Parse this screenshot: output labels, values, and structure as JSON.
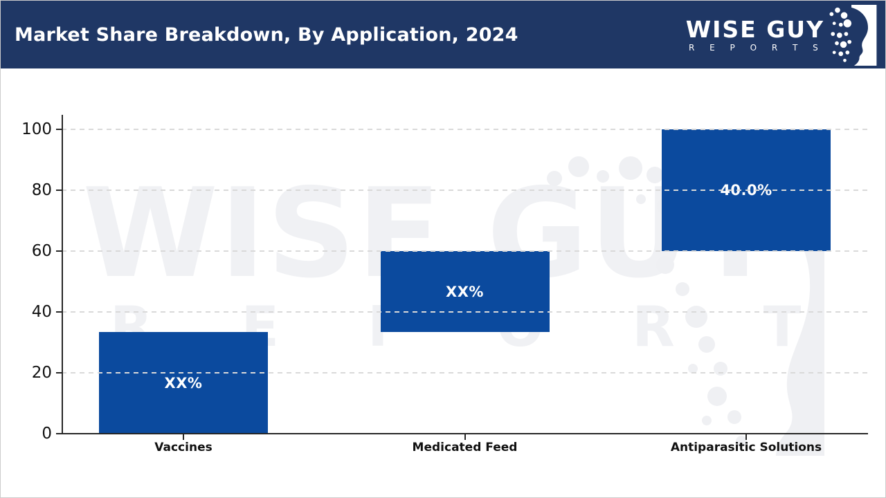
{
  "header": {
    "title": "Market Share Breakdown, By Application, 2024",
    "bg_color": "#1f3765",
    "logo": {
      "name": "WISE GUY",
      "sub": "R E P O R T S"
    }
  },
  "watermark": {
    "name": "WISE GUY",
    "sub": "R E P O R T S"
  },
  "chart_data": {
    "type": "bar",
    "subtype": "floating-segment-waterfall",
    "title": "Market Share Breakdown, By Application, 2024",
    "categories": [
      "Vaccines",
      "Medicated Feed",
      "Antiparasitic Solutions"
    ],
    "series": [
      {
        "name": "Market Share (%)",
        "segments": [
          {
            "category": "Vaccines",
            "start": 0,
            "end": 33.3,
            "value": 33.3,
            "label": "XX%"
          },
          {
            "category": "Medicated Feed",
            "start": 33.3,
            "end": 60,
            "value": 26.7,
            "label": "XX%"
          },
          {
            "category": "Antiparasitic Solutions",
            "start": 60,
            "end": 100,
            "value": 40.0,
            "label": "40.0%"
          }
        ]
      }
    ],
    "ylim": [
      0,
      100
    ],
    "yticks": [
      0,
      20,
      40,
      60,
      80,
      100
    ],
    "xlabel": "",
    "ylabel": "",
    "legend": "none",
    "grid": {
      "axis": "y",
      "style": "dashed",
      "color": "#d9d9d9"
    },
    "bar_color": "#0b4a9e",
    "bar_label_color": "#ffffff",
    "axis_color": "#262626"
  }
}
